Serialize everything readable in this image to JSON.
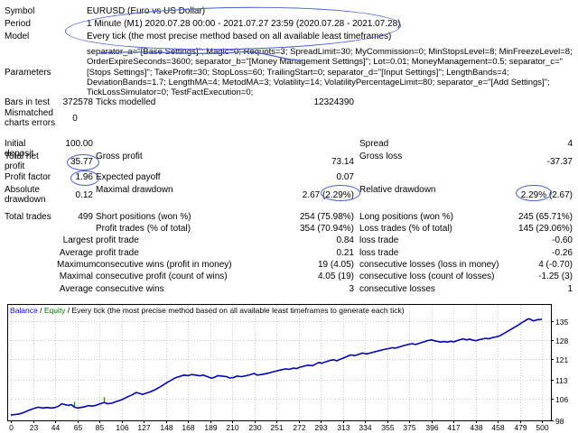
{
  "top": {
    "symbol": {
      "label": "Symbol",
      "value": "EURUSD (Euro vs US Dollar)"
    },
    "period": {
      "label": "Period",
      "value": "1 Minute (M1) 2020.07.28 00:00 - 2021.07.27 23:59 (2020.07.28 - 2021.07.28)"
    },
    "model": {
      "label": "Model",
      "value": "Every tick (the most precise method based on all available least timeframes)"
    },
    "parameters": {
      "label": "Parameters",
      "value": "separator_a=\"[Base Settings]\"; Magic=0; Requots=3; SpreadLimit=30; MyCommission=0; MinStopsLevel=8; MinFreezeLevel=8; OrderExpireSeconds=3600; separator_b=\"[Money Management Settings]\"; Lot=0.01; MoneyManagement=0.5; separator_c=\"[Stops Settings]\"; TakeProfit=30; StopLoss=60; TrailingStart=0; separator_d=\"[Input Settings]\"; LengthBands=4; DeviationBands=1.7; LengthMA=4; MetodMA=3; Volatility=14; VolatilityPercentageLimit=80; separator_e=\"[Add Settings]\"; TickLossSimulator=0; TestFactExecution=0;"
    }
  },
  "stats": {
    "rows": [
      {
        "l1": "Bars in test",
        "v1": "372578",
        "l2": "Ticks modelled",
        "v2": "12324390",
        "l3": "",
        "v3": ""
      },
      {
        "l1": "Mismatched\ncharts errors",
        "v1": "0",
        "l2": "",
        "v2": "",
        "l3": "",
        "v3": ""
      },
      {
        "l1": "Initial deposit",
        "v1": "100.00",
        "l2": "",
        "v2": "",
        "l3": "Spread",
        "v3": "4"
      },
      {
        "l1": "Total net\nprofit",
        "v1": "35.77",
        "l2": "Gross profit",
        "v2": "73.14",
        "l3": "Gross loss",
        "v3": "-37.37"
      },
      {
        "l1": "Profit factor",
        "v1": "1.96",
        "l2": "Expected payoff",
        "v2": "0.07",
        "l3": "",
        "v3": ""
      },
      {
        "l1": "Absolute\ndrawdown",
        "v1": "0.12",
        "l2": "Maximal drawdown",
        "v2": "2.67 (2.29%)",
        "l3": "Relative drawdown",
        "v3": "2.29% (2.67)"
      },
      {
        "l1": "Total trades",
        "v1": "499",
        "l2": "Short positions (won %)",
        "v2": "254 (75.98%)",
        "l3": "Long positions (won %)",
        "v3": "245 (65.71%)"
      },
      {
        "l1": "",
        "v1": "",
        "l2": "Profit trades (% of total)",
        "v2": "354 (70.94%)",
        "l3": "Loss trades (% of total)",
        "v3": "145 (29.06%)"
      },
      {
        "l1": "",
        "v1": "Largest",
        "l2": "profit trade",
        "v2": "0.84",
        "l3": "loss trade",
        "v3": "-0.60"
      },
      {
        "l1": "",
        "v1": "Average",
        "l2": "profit trade",
        "v2": "0.21",
        "l3": "loss trade",
        "v3": "-0.26"
      },
      {
        "l1": "",
        "v1": "Maximum",
        "l2": "consecutive wins (profit in money)",
        "v2": "19 (4.05)",
        "l3": "consecutive losses (loss in money)",
        "v3": "4 (-0.70)"
      },
      {
        "l1": "",
        "v1": "Maximal",
        "l2": "consecutive profit (count of wins)",
        "v2": "4.05 (19)",
        "l3": "consecutive loss (count of losses)",
        "v3": "-1.25 (3)"
      },
      {
        "l1": "",
        "v1": "Average",
        "l2": "consecutive wins",
        "v2": "3",
        "l3": "consecutive losses",
        "v3": "1"
      }
    ]
  },
  "annotations": {
    "color": "#4a5fd0",
    "items": [
      "period-model-circle",
      "total-net-profit-circle",
      "profit-factor-circle",
      "maximal-drawdown-percent-circle",
      "relative-drawdown-percent-circle",
      "parameters-scribble"
    ]
  },
  "chart_data": {
    "type": "line",
    "title": "Balance / Equity / Every tick (the most precise method based on all available least timeframes to generate each tick)",
    "header_parts": [
      {
        "text": "Balance",
        "color": "#0000ff"
      },
      {
        "text": " / ",
        "color": "#000000"
      },
      {
        "text": "Equity",
        "color": "#008000"
      },
      {
        "text": " / Every tick (the most precise method based on all available least timeframes to generate each tick)",
        "color": "#000000"
      }
    ],
    "xlabel": "",
    "ylabel": "",
    "x_ticks": [
      0,
      23,
      44,
      65,
      85,
      106,
      127,
      148,
      168,
      189,
      210,
      230,
      251,
      272,
      293,
      313,
      334,
      355,
      375,
      396,
      417,
      438,
      458,
      479,
      500
    ],
    "y_ticks": [
      135,
      128,
      121,
      113,
      106,
      98
    ],
    "xlim": [
      0,
      500
    ],
    "ylim": [
      98,
      141.5
    ],
    "grid": "dotted",
    "line_color": "#0000bb",
    "equity_color": "#00a000",
    "series": [
      {
        "name": "Balance",
        "points": [
          [
            0,
            100
          ],
          [
            4,
            100.2
          ],
          [
            8,
            100.4
          ],
          [
            12,
            100.9
          ],
          [
            16,
            101.6
          ],
          [
            20,
            102.2
          ],
          [
            23,
            102.6
          ],
          [
            26,
            102.9
          ],
          [
            30,
            102.6
          ],
          [
            34,
            102.8
          ],
          [
            38,
            102.6
          ],
          [
            42,
            102.8
          ],
          [
            45,
            103.3
          ],
          [
            48,
            104.2
          ],
          [
            51,
            103.9
          ],
          [
            54,
            103.6
          ],
          [
            57,
            103.9
          ],
          [
            60,
            102.9
          ],
          [
            63,
            102.6
          ],
          [
            66,
            102.8
          ],
          [
            70,
            103.1
          ],
          [
            73,
            103.5
          ],
          [
            76,
            103.3
          ],
          [
            80,
            103.6
          ],
          [
            84,
            104.2
          ],
          [
            88,
            104.7
          ],
          [
            91,
            104.2
          ],
          [
            95,
            104.4
          ],
          [
            99,
            105.0
          ],
          [
            103,
            105.5
          ],
          [
            106,
            106.0
          ],
          [
            110,
            106.8
          ],
          [
            114,
            107.5
          ],
          [
            118,
            108.4
          ],
          [
            121,
            108.1
          ],
          [
            124,
            107.7
          ],
          [
            127,
            108.1
          ],
          [
            131,
            108.6
          ],
          [
            135,
            109.3
          ],
          [
            139,
            110.1
          ],
          [
            143,
            111.1
          ],
          [
            147,
            112.1
          ],
          [
            151,
            113.0
          ],
          [
            155,
            113.9
          ],
          [
            159,
            114.4
          ],
          [
            163,
            114.9
          ],
          [
            167,
            114.7
          ],
          [
            170,
            115.1
          ],
          [
            174,
            114.9
          ],
          [
            178,
            114.6
          ],
          [
            181,
            114.9
          ],
          [
            185,
            114.3
          ],
          [
            189,
            113.7
          ],
          [
            192,
            114.1
          ],
          [
            195,
            114.7
          ],
          [
            199,
            114.5
          ],
          [
            203,
            114.3
          ],
          [
            206,
            113.8
          ],
          [
            210,
            114.0
          ],
          [
            213,
            114.5
          ],
          [
            217,
            114.3
          ],
          [
            221,
            114.6
          ],
          [
            225,
            115.0
          ],
          [
            229,
            115.5
          ],
          [
            232,
            114.9
          ],
          [
            236,
            115.1
          ],
          [
            240,
            115.4
          ],
          [
            244,
            115.8
          ],
          [
            248,
            116.2
          ],
          [
            251,
            116.5
          ],
          [
            255,
            116.9
          ],
          [
            259,
            117.2
          ],
          [
            262,
            117.0
          ],
          [
            266,
            117.5
          ],
          [
            269,
            117.3
          ],
          [
            272,
            117.8
          ],
          [
            276,
            118.2
          ],
          [
            280,
            118.6
          ],
          [
            284,
            118.4
          ],
          [
            287,
            119.0
          ],
          [
            290,
            119.6
          ],
          [
            293,
            119.3
          ],
          [
            296,
            119.8
          ],
          [
            300,
            120.3
          ],
          [
            304,
            120.6
          ],
          [
            307,
            120.2
          ],
          [
            310,
            120.8
          ],
          [
            313,
            121.2
          ],
          [
            317,
            121.9
          ],
          [
            320,
            122.4
          ],
          [
            324,
            122.2
          ],
          [
            328,
            122.7
          ],
          [
            331,
            123.1
          ],
          [
            335,
            122.8
          ],
          [
            339,
            123.2
          ],
          [
            343,
            123.6
          ],
          [
            347,
            124.0
          ],
          [
            351,
            124.4
          ],
          [
            355,
            124.7
          ],
          [
            359,
            125.1
          ],
          [
            362,
            124.9
          ],
          [
            366,
            125.4
          ],
          [
            370,
            125.9
          ],
          [
            374,
            126.3
          ],
          [
            378,
            126.6
          ],
          [
            381,
            126.3
          ],
          [
            385,
            126.8
          ],
          [
            389,
            127.3
          ],
          [
            393,
            127.8
          ],
          [
            396,
            128.0
          ],
          [
            399,
            127.7
          ],
          [
            402,
            127.4
          ],
          [
            405,
            127.2
          ],
          [
            408,
            127.4
          ],
          [
            411,
            127.2
          ],
          [
            414,
            127.5
          ],
          [
            417,
            127.3
          ],
          [
            420,
            127.7
          ],
          [
            423,
            128.1
          ],
          [
            426,
            128.4
          ],
          [
            429,
            128.0
          ],
          [
            432,
            128.3
          ],
          [
            435,
            127.9
          ],
          [
            438,
            127.7
          ],
          [
            441,
            128.1
          ],
          [
            444,
            128.3
          ],
          [
            447,
            128.6
          ],
          [
            450,
            128.4
          ],
          [
            453,
            128.8
          ],
          [
            457,
            129.1
          ],
          [
            460,
            129.5
          ],
          [
            463,
            130.1
          ],
          [
            466,
            130.8
          ],
          [
            469,
            131.5
          ],
          [
            472,
            132.2
          ],
          [
            475,
            132.9
          ],
          [
            478,
            133.6
          ],
          [
            481,
            134.4
          ],
          [
            484,
            135.1
          ],
          [
            486,
            135.6
          ],
          [
            488,
            135.9
          ],
          [
            490,
            135.5
          ],
          [
            492,
            135.1
          ],
          [
            494,
            135.3
          ],
          [
            496,
            135.6
          ],
          [
            498,
            135.5
          ],
          [
            500,
            135.8
          ]
        ]
      }
    ],
    "equity_marks": [
      [
        60,
        103.6
      ],
      [
        88,
        105.3
      ]
    ]
  }
}
